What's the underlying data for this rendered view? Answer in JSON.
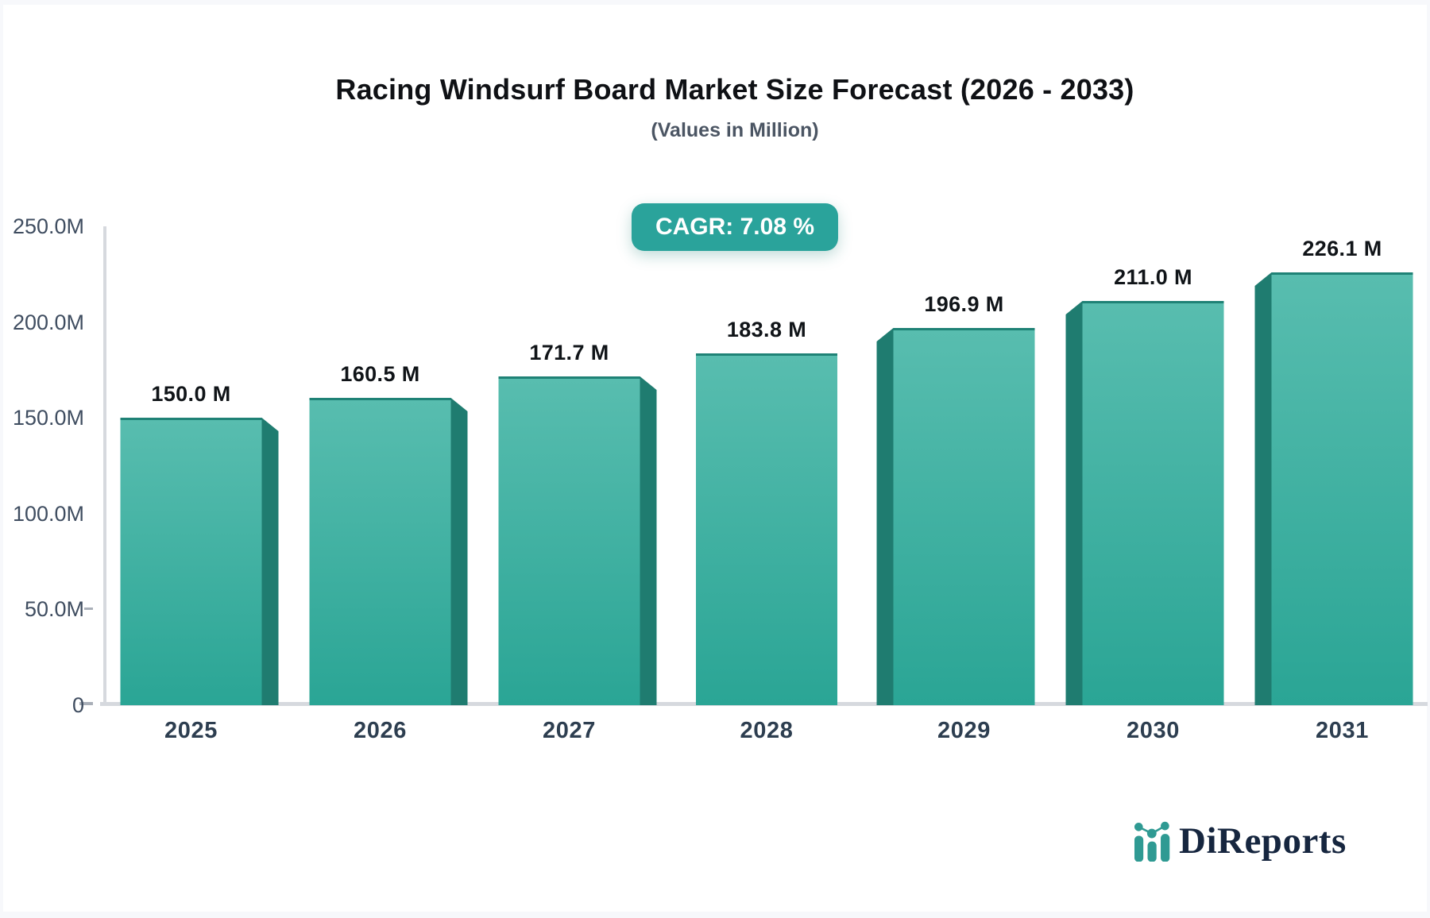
{
  "page": {
    "title": "Racing Windsurf Board Market Size Forecast (2026 - 2033)",
    "subtitle": "(Values in Million)",
    "background": "#f7f8fb",
    "card_background": "#ffffff"
  },
  "badge": {
    "label": "CAGR: 7.08 %",
    "background": "#2aa39b",
    "text_color": "#ffffff"
  },
  "chart_data": {
    "type": "bar",
    "title": "Racing Windsurf Board Market Size Forecast (2026 - 2033)",
    "subtitle": "(Values in Million)",
    "categories": [
      "2025",
      "2026",
      "2027",
      "2028",
      "2029",
      "2030",
      "2031"
    ],
    "values": [
      150.0,
      160.5,
      171.7,
      183.8,
      196.9,
      211.0,
      226.1
    ],
    "value_labels": [
      "150.0 M",
      "160.5 M",
      "171.7 M",
      "183.8 M",
      "196.9 M",
      "211.0 M",
      "226.1 M"
    ],
    "unit": "Million",
    "xlabel": "",
    "ylabel": "",
    "ylim": [
      0,
      250
    ],
    "y_ticks": [
      "250.0M",
      "200.0M",
      "150.0M",
      "100.0M",
      "50.0M",
      "0"
    ],
    "grid": false,
    "legend": false,
    "colors": {
      "bar_face_top": "#58bdaf",
      "bar_face_bottom": "#2aa595",
      "bar_side": "#1f7c70",
      "bar_top_edge": "#1f8276",
      "axis_line": "#d6d9de",
      "y_tick_text": "#3f4d60",
      "x_tick_text": "#2d3e50",
      "value_label_text": "#101418"
    }
  },
  "logo": {
    "text": "DiReports",
    "icon": "logo-chart-icon",
    "text_color": "#16263f",
    "icon_color": "#2f9a93"
  }
}
